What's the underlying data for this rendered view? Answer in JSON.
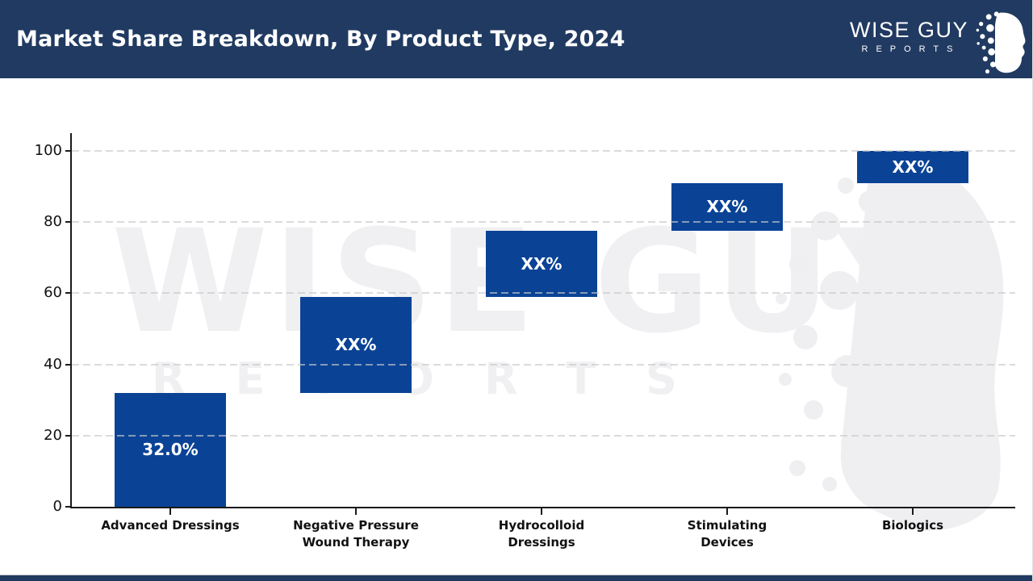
{
  "header": {
    "title": "Market Share Breakdown, By Product Type, 2024",
    "bg_color": "#213a61",
    "logo": {
      "line1": "WISE GUY",
      "line2": "REPORTS"
    }
  },
  "watermark": {
    "line1": "WISE GUY",
    "line2": "REPORTS"
  },
  "chart_data": {
    "type": "bar",
    "subtype": "waterfall",
    "title": "Market Share Breakdown, By Product Type, 2024",
    "xlabel": "",
    "ylabel": "",
    "ylim": [
      0,
      105
    ],
    "y_ticks": [
      0,
      20,
      40,
      60,
      80,
      100
    ],
    "grid": "horizontal-dashed",
    "bar_color": "#0a4396",
    "categories": [
      "Advanced Dressings",
      "Negative Pressure Wound Therapy",
      "Hydrocolloid Dressings",
      "Stimulating Devices",
      "Biologics"
    ],
    "category_label_lines": [
      [
        "Advanced Dressings"
      ],
      [
        "Negative Pressure",
        "Wound Therapy"
      ],
      [
        "Hydrocolloid",
        "Dressings"
      ],
      [
        "Stimulating",
        "Devices"
      ],
      [
        "Biologics"
      ]
    ],
    "segments": [
      {
        "category": "Advanced Dressings",
        "start": 0,
        "end": 32,
        "label": "32.0%"
      },
      {
        "category": "Negative Pressure Wound Therapy",
        "start": 32,
        "end": 59,
        "label": "XX%"
      },
      {
        "category": "Hydrocolloid Dressings",
        "start": 59,
        "end": 77.5,
        "label": "XX%"
      },
      {
        "category": "Stimulating Devices",
        "start": 77.5,
        "end": 91,
        "label": "XX%"
      },
      {
        "category": "Biologics",
        "start": 91,
        "end": 100,
        "label": "XX%"
      }
    ]
  },
  "footer": {
    "bar_color": "#213a61"
  }
}
